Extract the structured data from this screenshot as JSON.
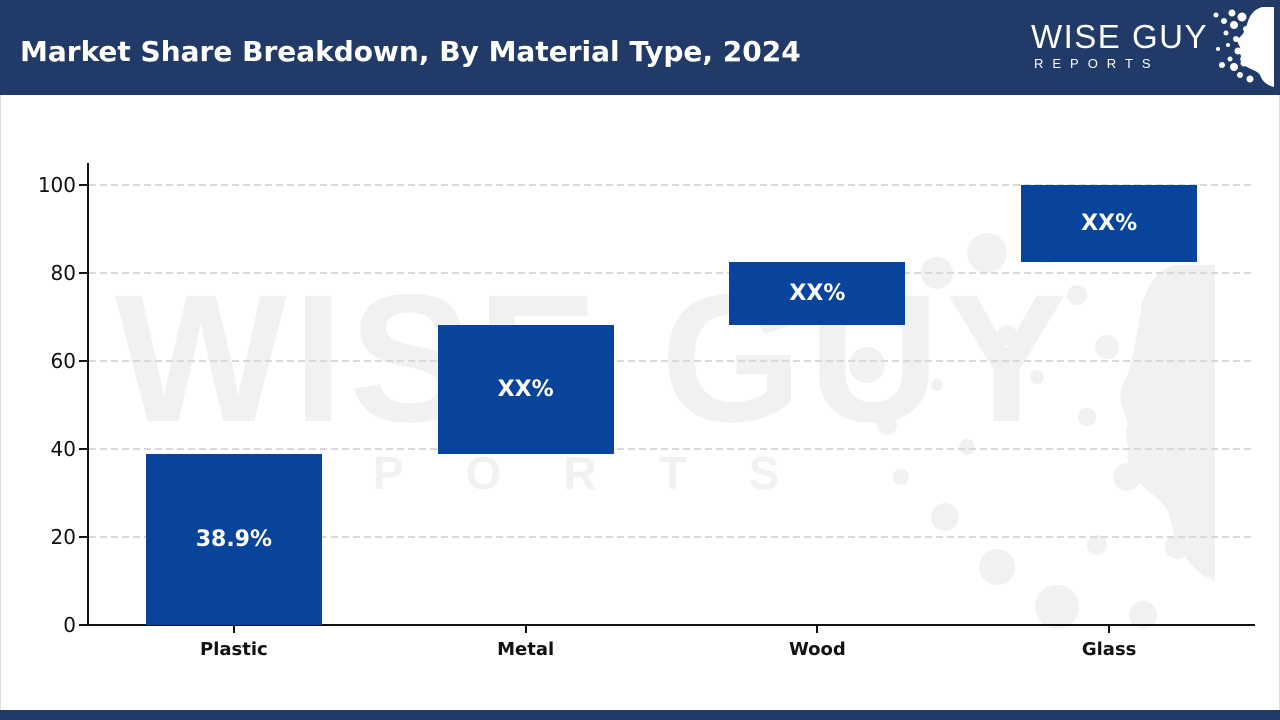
{
  "header": {
    "title": "Market Share Breakdown, By Material Type, 2024",
    "logo": {
      "line1": "WISE GUY",
      "line2": "REPORTS"
    }
  },
  "watermark": {
    "line1": "WISE GUY",
    "line2": "REPORTS"
  },
  "chart_data": {
    "type": "bar",
    "variant": "waterfall",
    "title": "Market Share Breakdown, By Material Type, 2024",
    "categories": [
      "Plastic",
      "Metal",
      "Wood",
      "Glass"
    ],
    "segments": [
      {
        "category": "Plastic",
        "start": 0,
        "end": 38.9,
        "label": "38.9%"
      },
      {
        "category": "Metal",
        "start": 38.9,
        "end": 68.0,
        "label": "XX%"
      },
      {
        "category": "Wood",
        "start": 68.0,
        "end": 82.5,
        "label": "XX%"
      },
      {
        "category": "Glass",
        "start": 82.5,
        "end": 100.0,
        "label": "XX%"
      }
    ],
    "yticks": [
      0,
      20,
      40,
      60,
      80,
      100
    ],
    "ylim": [
      0,
      104.8
    ],
    "xlabel": "",
    "ylabel": "",
    "grid": "horizontal-dashed",
    "legend": "none"
  },
  "colors": {
    "header_bg": "#223a68",
    "footer_bg": "#223a68",
    "bar": "#08449b",
    "watermark": "#f1f1f2",
    "grid": "#d9d9d9",
    "axis": "#111111",
    "title_text": "#ffffff",
    "bar_label_text": "#ffffff"
  }
}
